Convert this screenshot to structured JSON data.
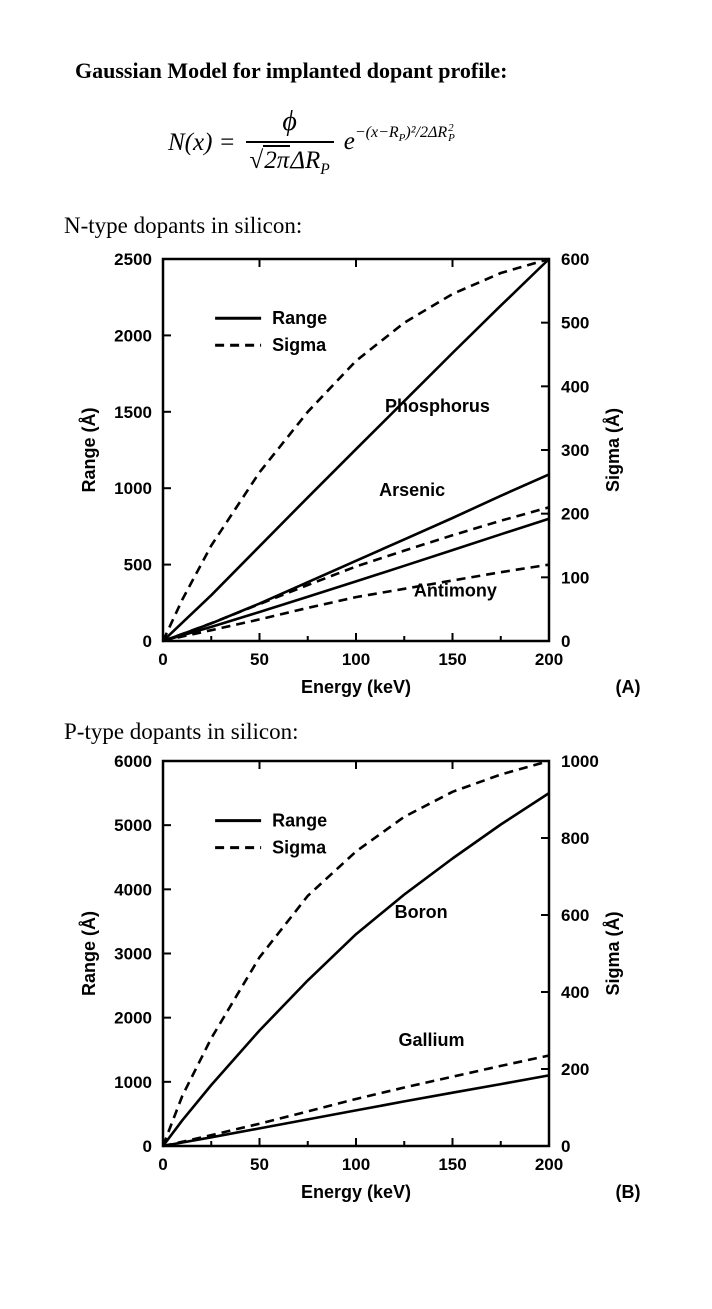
{
  "page": {
    "title": "Gaussian Model for implanted dopant profile:",
    "section_n": "N-type dopants in silicon:",
    "section_p": "P-type dopants in silicon:"
  },
  "equation": {
    "lhs": "N(x) =",
    "numerator": "ϕ",
    "sqrt_sign": "√",
    "denom_radicand": "2π",
    "denom_rest": "ΔR",
    "denom_sub": "P",
    "exp_base": "e",
    "exp_open": "−(x−R",
    "exp_sub_p": "P",
    "exp_mid": ")²/2ΔR",
    "exp_stack_sup": "2",
    "exp_stack_sub": "P"
  },
  "chart_data": [
    {
      "type": "line",
      "title": "N-type dopants in silicon",
      "corner_label": "(A)",
      "xlabel": "Energy (keV)",
      "x_range": [
        0,
        200
      ],
      "x_ticks": [
        0,
        50,
        100,
        150,
        200
      ],
      "x_minor_step": 25,
      "left_axis": {
        "label": "Range (Å)",
        "range": [
          0,
          2500
        ],
        "ticks": [
          0,
          500,
          1000,
          1500,
          2000,
          2500
        ]
      },
      "right_axis": {
        "label": "Sigma (Å)",
        "range": [
          0,
          600
        ],
        "ticks": [
          0,
          100,
          200,
          300,
          400,
          500,
          600
        ]
      },
      "grid": false,
      "legend": {
        "position": "upper-left",
        "entries": [
          {
            "style": "solid",
            "label": "Range"
          },
          {
            "style": "dashed",
            "label": "Sigma"
          }
        ]
      },
      "x": [
        0,
        10,
        25,
        50,
        75,
        100,
        125,
        150,
        175,
        200
      ],
      "series": [
        {
          "name": "Phosphorus Range",
          "axis": "left",
          "style": "solid",
          "values": [
            0,
            120,
            300,
            620,
            940,
            1255,
            1570,
            1885,
            2195,
            2500
          ]
        },
        {
          "name": "Phosphorus Sigma",
          "axis": "right",
          "style": "dashed",
          "values": [
            0,
            65,
            150,
            265,
            360,
            440,
            500,
            545,
            578,
            600
          ]
        },
        {
          "name": "Arsenic Range",
          "axis": "left",
          "style": "solid",
          "values": [
            0,
            45,
            115,
            245,
            385,
            525,
            665,
            805,
            950,
            1090
          ]
        },
        {
          "name": "Arsenic Sigma",
          "axis": "right",
          "style": "dashed",
          "values": [
            0,
            11,
            28,
            58,
            88,
            117,
            142,
            166,
            189,
            210
          ]
        },
        {
          "name": "Antimony Range",
          "axis": "left",
          "style": "solid",
          "values": [
            0,
            37,
            92,
            190,
            290,
            390,
            492,
            595,
            698,
            800
          ]
        },
        {
          "name": "Antimony Sigma",
          "axis": "right",
          "style": "dashed",
          "values": [
            0,
            7,
            17,
            34,
            52,
            69,
            82,
            95,
            108,
            120
          ]
        }
      ],
      "annotations": [
        {
          "text": "Phosphorus",
          "x": 115,
          "y": 1500,
          "axis": "left"
        },
        {
          "text": "Arsenic",
          "x": 112,
          "y": 950,
          "axis": "left"
        },
        {
          "text": "Antimony",
          "x": 130,
          "y": 290,
          "axis": "left"
        }
      ]
    },
    {
      "type": "line",
      "title": "P-type dopants in silicon",
      "corner_label": "(B)",
      "xlabel": "Energy (keV)",
      "x_range": [
        0,
        200
      ],
      "x_ticks": [
        0,
        50,
        100,
        150,
        200
      ],
      "x_minor_step": 25,
      "left_axis": {
        "label": "Range (Å)",
        "range": [
          0,
          6000
        ],
        "ticks": [
          0,
          1000,
          2000,
          3000,
          4000,
          5000,
          6000
        ]
      },
      "right_axis": {
        "label": "Sigma (Å)",
        "range": [
          0,
          1000
        ],
        "ticks": [
          0,
          200,
          400,
          600,
          800,
          1000
        ]
      },
      "grid": false,
      "legend": {
        "position": "upper-left",
        "entries": [
          {
            "style": "solid",
            "label": "Range"
          },
          {
            "style": "dashed",
            "label": "Sigma"
          }
        ]
      },
      "x": [
        0,
        10,
        25,
        50,
        75,
        100,
        125,
        150,
        175,
        200
      ],
      "series": [
        {
          "name": "Boron Range",
          "axis": "left",
          "style": "solid",
          "values": [
            0,
            400,
            950,
            1800,
            2580,
            3300,
            3920,
            4480,
            5010,
            5500
          ]
        },
        {
          "name": "Boron Sigma",
          "axis": "right",
          "style": "dashed",
          "values": [
            0,
            130,
            280,
            490,
            650,
            765,
            855,
            920,
            965,
            1000
          ]
        },
        {
          "name": "Gallium Range",
          "axis": "left",
          "style": "solid",
          "values": [
            0,
            55,
            135,
            275,
            415,
            555,
            695,
            830,
            965,
            1100
          ]
        },
        {
          "name": "Gallium Sigma",
          "axis": "right",
          "style": "dashed",
          "values": [
            0,
            11,
            28,
            58,
            90,
            122,
            152,
            180,
            208,
            235
          ]
        }
      ],
      "annotations": [
        {
          "text": "Boron",
          "x": 120,
          "y": 3550,
          "axis": "left"
        },
        {
          "text": "Gallium",
          "x": 122,
          "y": 1560,
          "axis": "left"
        }
      ]
    }
  ]
}
